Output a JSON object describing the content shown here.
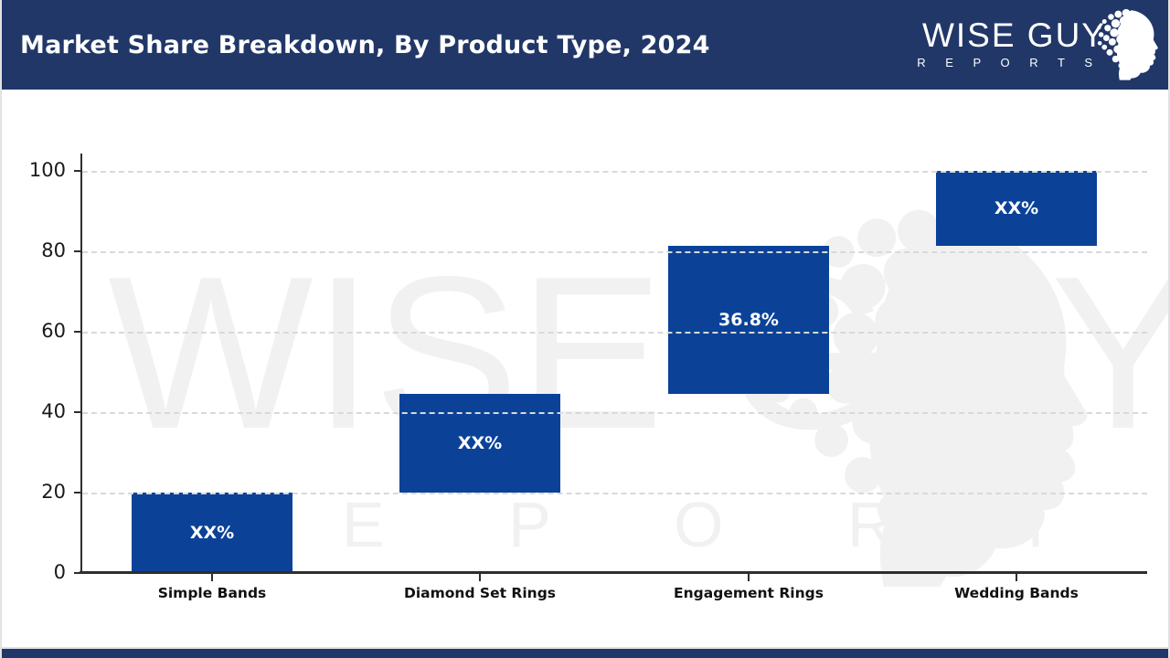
{
  "header": {
    "title": "Market Share Breakdown, By Product Type, 2024",
    "logo": {
      "name": "WISE GUY",
      "sub": "R E P O R T S"
    }
  },
  "watermark": {
    "name": "WISE GUY",
    "sub": "R E P O R T S"
  },
  "chart_data": {
    "type": "bar",
    "variant": "waterfall",
    "title": "Market Share Breakdown, By Product Type, 2024",
    "categories": [
      "Simple Bands",
      "Diamond Set Rings",
      "Engagement Rings",
      "Wedding Bands"
    ],
    "segments": [
      {
        "category": "Simple Bands",
        "label": "XX%",
        "start": 0,
        "end": 20,
        "value_shown": "XX%"
      },
      {
        "category": "Diamond Set Rings",
        "label": "XX%",
        "start": 20,
        "end": 44.5,
        "value_shown": "XX%"
      },
      {
        "category": "Engagement Rings",
        "label": "36.8%",
        "start": 44.5,
        "end": 81.3,
        "value_shown": "36.8%"
      },
      {
        "category": "Wedding Bands",
        "label": "XX%",
        "start": 81.3,
        "end": 100,
        "value_shown": "XX%"
      }
    ],
    "yticks": [
      "0",
      "20",
      "40",
      "60",
      "80",
      "100"
    ],
    "ylim": [
      0,
      100
    ],
    "xlabel": "",
    "ylabel": "",
    "grid": "horizontal-dashed",
    "legend": "none"
  },
  "colors": {
    "header_bg": "#213768",
    "footer_bg": "#213768",
    "bar": "#0b4298",
    "grid": "#d9d9d9",
    "axis": "#2e2e2e",
    "watermark": "#f1f1f1",
    "title_text": "#ffffff"
  }
}
